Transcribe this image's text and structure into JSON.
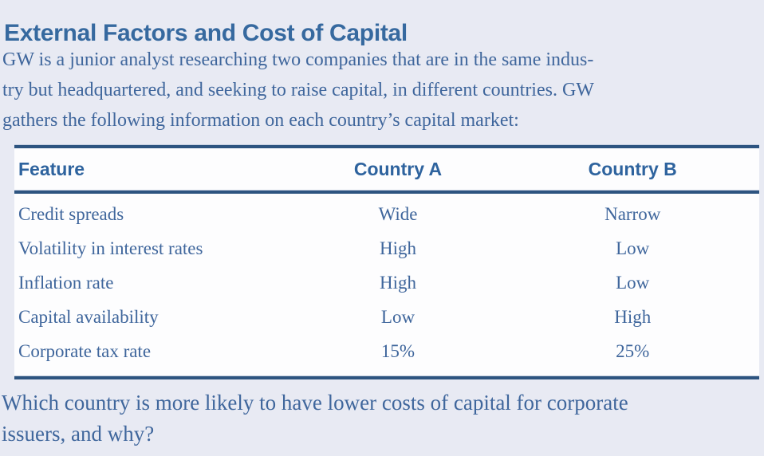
{
  "page": {
    "title": "External Factors and Cost of Capital",
    "intro_lines": [
      "GW is a junior analyst researching two companies that are in the same indus-",
      "try but headquartered, and seeking to raise capital, in different countries. GW",
      "gathers the following information on each country’s capital market:"
    ],
    "question_lines": [
      "Which country is more likely to have lower costs of capital for corporate",
      "issuers, and why?"
    ]
  },
  "table": {
    "headers": [
      "Feature",
      "Country A",
      "Country B"
    ],
    "rows": [
      {
        "feature": "Credit spreads",
        "country_a": "Wide",
        "country_b": "Narrow"
      },
      {
        "feature": "Volatility in interest rates",
        "country_a": "High",
        "country_b": "Low"
      },
      {
        "feature": "Inflation rate",
        "country_a": "High",
        "country_b": "Low"
      },
      {
        "feature": "Capital availability",
        "country_a": "Low",
        "country_b": "High"
      },
      {
        "feature": "Corporate tax rate",
        "country_a": "15%",
        "country_b": "25%"
      }
    ]
  },
  "colors": {
    "page_background": "#e8eaf3",
    "table_background": "#fdfdfe",
    "table_rule": "#2d5480",
    "heading_blue": "#36699f",
    "body_text_blue": "#3f669c"
  }
}
